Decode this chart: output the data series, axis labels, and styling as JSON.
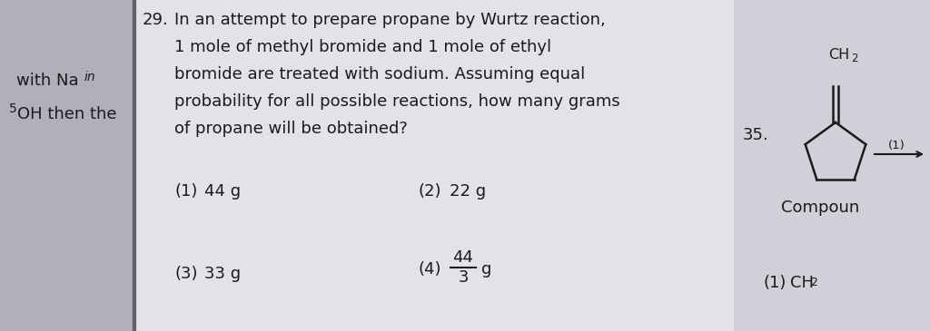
{
  "bg_color": "#b0b0bc",
  "left_panel_color": "#b0b0bc",
  "main_panel_color": "#e2e2e8",
  "right_panel_color": "#d0d0d8",
  "q_number": "29.",
  "question_line1": "In an attempt to prepare propane by Wurtz reaction,",
  "question_line2": "1 mole of methyl bromide and 1 mole of ethyl",
  "question_line3": "bromide are treated with sodium. Assuming equal",
  "question_line4": "probability for all possible reactions, how many grams",
  "question_line5": "of propane will be obtained?",
  "opt1_label": "(1)",
  "opt1_val": "44 g",
  "opt2_label": "(2)",
  "opt2_val": "22 g",
  "opt3_label": "(3)",
  "opt3_val": "33 g",
  "opt4_label": "(4)",
  "opt4_num": "44",
  "opt4_den": "3",
  "opt4_suffix": "g",
  "right_num": "35.",
  "right_label": "Compoun",
  "bottom_right_label1": "(1)",
  "bottom_right_label2": "CH",
  "bottom_right_sub": "2",
  "left_text1": "with Na",
  "left_text1b": "in",
  "left_text2_sub": "5",
  "left_text2": "OH then the",
  "text_color": "#1a1a1a",
  "font_size_q": 13.0,
  "font_size_opt": 13.0
}
